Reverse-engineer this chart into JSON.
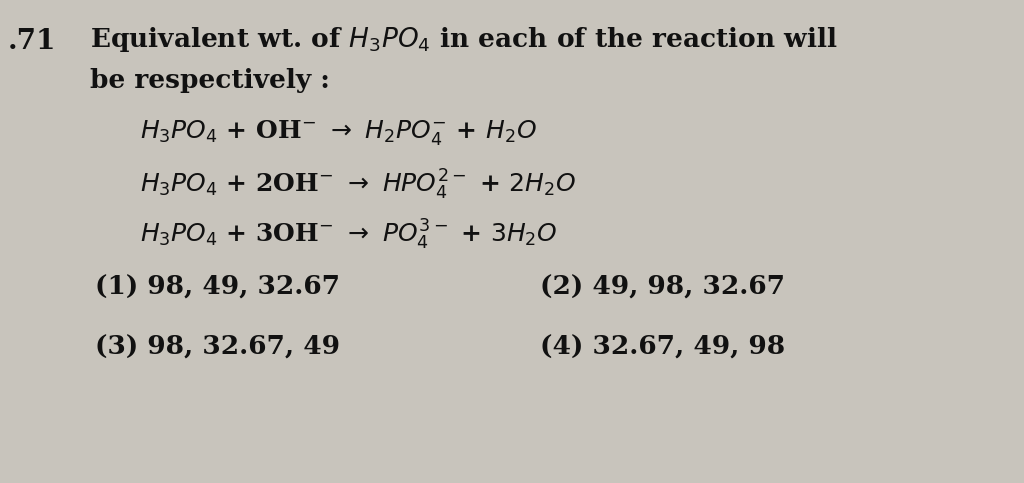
{
  "background_color": "#c8c4bc",
  "text_color": "#111111",
  "q_num": ".71",
  "title1": "Equivalent wt. of $H_3PO_4$ in each of the reaction will",
  "title2": "be respectively :",
  "rxn1": "$H_3PO_4$ + OH$^{-}$ $\\rightarrow$ $H_2PO_4^{-}$ + $H_2O$",
  "rxn2": "$H_3PO_4$ + 2OH$^{-}$ $\\rightarrow$ $HPO_4^{2-}$ + $2H_2O$",
  "rxn3": "$H_3PO_4$ + 3OH$^{-}$ $\\rightarrow$ $PO_4^{3-}$ + $3H_2O$",
  "opt1": "(1) 98, 49, 32.67",
  "opt2": "(2) 49, 98, 32.67",
  "opt3": "(3) 98, 32.67, 49",
  "opt4": "(4) 32.67, 49, 98",
  "fs_title": 19,
  "fs_eq": 18,
  "fs_opt": 19,
  "fs_qnum": 20
}
